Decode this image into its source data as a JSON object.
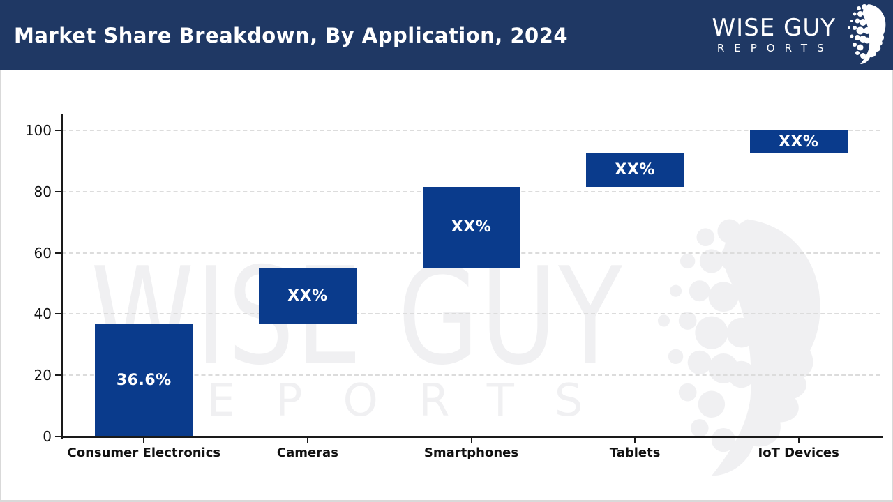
{
  "header": {
    "title": "Market Share Breakdown, By Application, 2024",
    "background_color": "#1f3864",
    "logo": {
      "line1": "WISE GUY",
      "line2": "REPORTS"
    }
  },
  "watermark": {
    "line1": "WISE GUY",
    "line2": "REPORTS"
  },
  "chart_data": {
    "type": "bar",
    "subtype": "waterfall",
    "title": "Market Share Breakdown, By Application, 2024",
    "xlabel": "",
    "ylabel": "",
    "ylim": [
      0,
      100
    ],
    "yticks": [
      0,
      20,
      40,
      60,
      80,
      100
    ],
    "grid": "horizontal-dashed",
    "bar_color": "#0a3b8c",
    "value_label_color": "#ffffff",
    "categories": [
      "Consumer Electronics",
      "Cameras",
      "Smartphones",
      "Tablets",
      "IoT Devices"
    ],
    "segments": [
      {
        "category": "Consumer Electronics",
        "start": 0,
        "end": 36.6,
        "value": 36.6,
        "value_label": "36.6%"
      },
      {
        "category": "Cameras",
        "start": 36.6,
        "end": 55.1,
        "value": 18.5,
        "value_label": "XX%"
      },
      {
        "category": "Smartphones",
        "start": 55.1,
        "end": 81.6,
        "value": 26.5,
        "value_label": "XX%"
      },
      {
        "category": "Tablets",
        "start": 81.6,
        "end": 92.5,
        "value": 10.9,
        "value_label": "XX%"
      },
      {
        "category": "IoT Devices",
        "start": 92.5,
        "end": 100,
        "value": 7.5,
        "value_label": "XX%"
      }
    ]
  }
}
